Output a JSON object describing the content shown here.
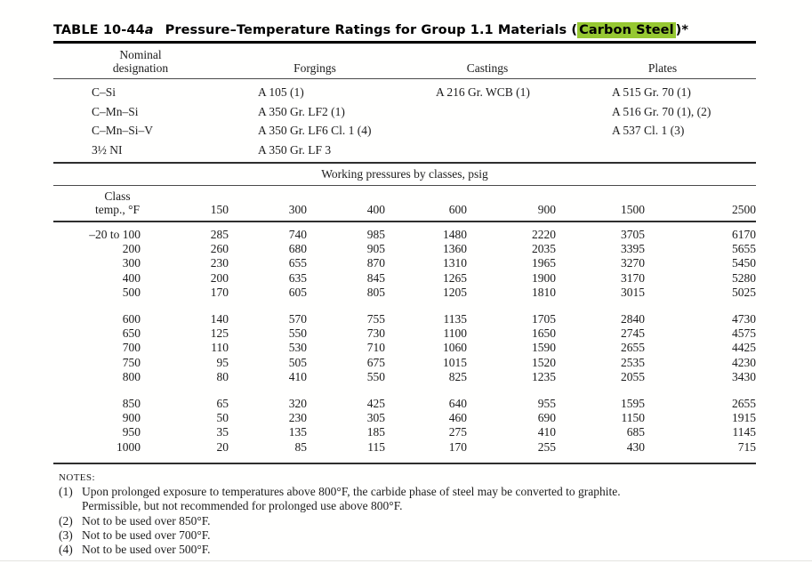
{
  "title": {
    "table_label": "TABLE 10-44",
    "table_label_suffix": "a",
    "main": "Pressure–Temperature Ratings for Group 1.1 Materials (",
    "highlight": "Carbon Steel",
    "suffix": ")*",
    "highlight_color": "#96c832"
  },
  "materials": {
    "headers": {
      "col1_line1": "Nominal",
      "col1_line2": "designation",
      "col2": "Forgings",
      "col3": "Castings",
      "col4": "Plates"
    },
    "rows": [
      [
        "C–Si",
        "A 105 (1)",
        "A 216 Gr. WCB (1)",
        "A 515 Gr. 70 (1)"
      ],
      [
        "C–Mn–Si",
        "A 350 Gr. LF2 (1)",
        "",
        "A 516 Gr. 70 (1), (2)"
      ],
      [
        "C–Mn–Si–V",
        "A 350 Gr. LF6 Cl. 1 (4)",
        "",
        "A 537 Cl. 1 (3)"
      ],
      [
        "3½ NI",
        "A 350 Gr. LF 3",
        "",
        ""
      ]
    ]
  },
  "pressures": {
    "section_title": "Working pressures by classes, psig",
    "row_header_line1": "Class",
    "row_header_line2": "temp., °F",
    "class_labels": [
      "150",
      "300",
      "400",
      "600",
      "900",
      "1500",
      "2500"
    ],
    "groups": [
      {
        "rows": [
          {
            "temp": "–20 to 100",
            "values": [
              285,
              740,
              985,
              1480,
              2220,
              3705,
              6170
            ]
          },
          {
            "temp": "200",
            "values": [
              260,
              680,
              905,
              1360,
              2035,
              3395,
              5655
            ]
          },
          {
            "temp": "300",
            "values": [
              230,
              655,
              870,
              1310,
              1965,
              3270,
              5450
            ]
          },
          {
            "temp": "400",
            "values": [
              200,
              635,
              845,
              1265,
              1900,
              3170,
              5280
            ]
          },
          {
            "temp": "500",
            "values": [
              170,
              605,
              805,
              1205,
              1810,
              3015,
              5025
            ]
          }
        ]
      },
      {
        "rows": [
          {
            "temp": "600",
            "values": [
              140,
              570,
              755,
              1135,
              1705,
              2840,
              4730
            ]
          },
          {
            "temp": "650",
            "values": [
              125,
              550,
              730,
              1100,
              1650,
              2745,
              4575
            ]
          },
          {
            "temp": "700",
            "values": [
              110,
              530,
              710,
              1060,
              1590,
              2655,
              4425
            ]
          },
          {
            "temp": "750",
            "values": [
              95,
              505,
              675,
              1015,
              1520,
              2535,
              4230
            ]
          },
          {
            "temp": "800",
            "values": [
              80,
              410,
              550,
              825,
              1235,
              2055,
              3430
            ]
          }
        ]
      },
      {
        "rows": [
          {
            "temp": "850",
            "values": [
              65,
              320,
              425,
              640,
              955,
              1595,
              2655
            ]
          },
          {
            "temp": "900",
            "values": [
              50,
              230,
              305,
              460,
              690,
              1150,
              1915
            ]
          },
          {
            "temp": "950",
            "values": [
              35,
              135,
              185,
              275,
              410,
              685,
              1145
            ]
          },
          {
            "temp": "1000",
            "values": [
              20,
              85,
              115,
              170,
              255,
              430,
              715
            ]
          }
        ]
      }
    ]
  },
  "notes": {
    "heading": "NOTES:",
    "items": [
      {
        "num": "(1)",
        "text": "Upon prolonged exposure to temperatures above 800°F, the carbide phase of steel may be converted to graphite. Permissible, but not recommended for prolonged use above 800°F."
      },
      {
        "num": "(2)",
        "text": "Not to be used over 850°F."
      },
      {
        "num": "(3)",
        "text": "Not to be used over 700°F."
      },
      {
        "num": "(4)",
        "text": "Not to be used over 500°F."
      }
    ]
  }
}
